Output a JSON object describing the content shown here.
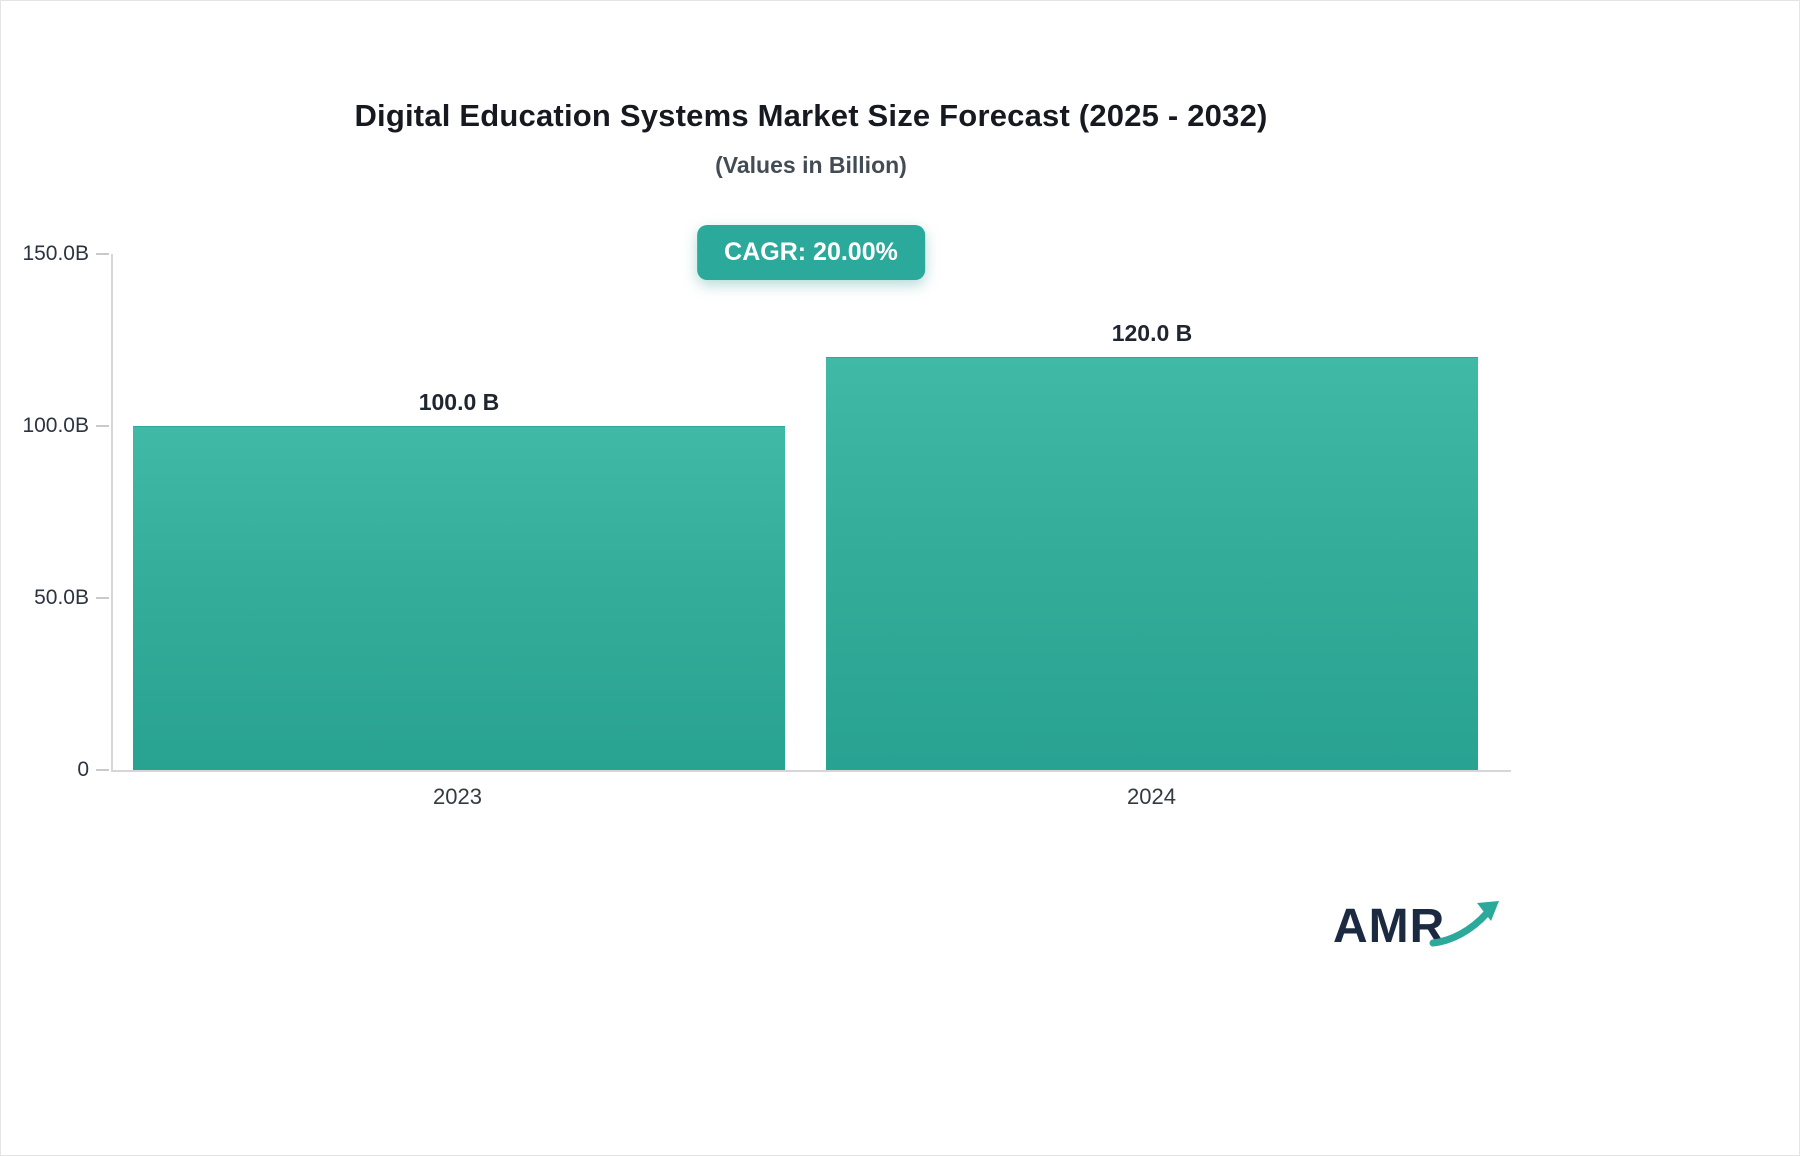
{
  "title": "Digital Education Systems Market Size Forecast (2025 - 2032)",
  "subtitle": "(Values in Billion)",
  "badge": {
    "label": "CAGR: 20.00%"
  },
  "logo": {
    "text": "AMR"
  },
  "colors": {
    "teal": "#2ba99b",
    "bar_gradient_top": "#41b9a7",
    "bar_gradient_bottom": "#28a291",
    "navy": "#1b2a41",
    "axis": "#d6d6d6"
  },
  "chart_data": {
    "type": "bar",
    "title": "Digital Education Systems Market Size Forecast (2025 - 2032)",
    "subtitle": "(Values in Billion)",
    "annotation": "CAGR: 20.00%",
    "categories": [
      "2023",
      "2024"
    ],
    "values": [
      100.0,
      120.0
    ],
    "value_labels": [
      "100.0 B",
      "120.0 B"
    ],
    "xlabel": "",
    "ylabel": "",
    "ylim": [
      0,
      150
    ],
    "yticks": [
      0,
      50,
      100,
      150
    ],
    "ytick_labels": [
      "0",
      "50.0B",
      "100.0B",
      "150.0B"
    ],
    "grid": false,
    "legend": false
  }
}
